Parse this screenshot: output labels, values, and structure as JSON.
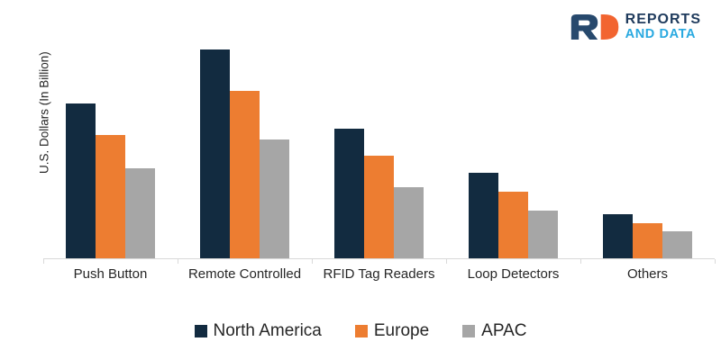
{
  "logo": {
    "line1": "REPORTS",
    "line2": "AND DATA",
    "colors": {
      "mark_r": "#27496D",
      "mark_d": "#F26430",
      "line1": "#1E3A5C",
      "line2": "#29A9E0"
    }
  },
  "chart_data": {
    "type": "bar",
    "title": "",
    "xlabel": "",
    "ylabel": "U.S. Dollars (In Billion)",
    "categories": [
      "Push Button",
      "Remote Controlled",
      "RFID Tag Readers",
      "Loop Detectors",
      "Others"
    ],
    "series": [
      {
        "name": "North America",
        "color": "#122B40",
        "values": [
          7.4,
          10.0,
          6.2,
          4.1,
          2.1
        ]
      },
      {
        "name": "Europe",
        "color": "#ED7D31",
        "values": [
          5.9,
          8.0,
          4.9,
          3.2,
          1.7
        ]
      },
      {
        "name": "APAC",
        "color": "#A6A6A6",
        "values": [
          4.3,
          5.7,
          3.4,
          2.3,
          1.3
        ]
      }
    ],
    "ylim": [
      0,
      10.65
    ],
    "units": "relative estimate — no y-axis tick labels shown in chart",
    "grid": false,
    "legend_position": "bottom",
    "axis_color": "#D9D9D9",
    "label_color": "#262626"
  }
}
